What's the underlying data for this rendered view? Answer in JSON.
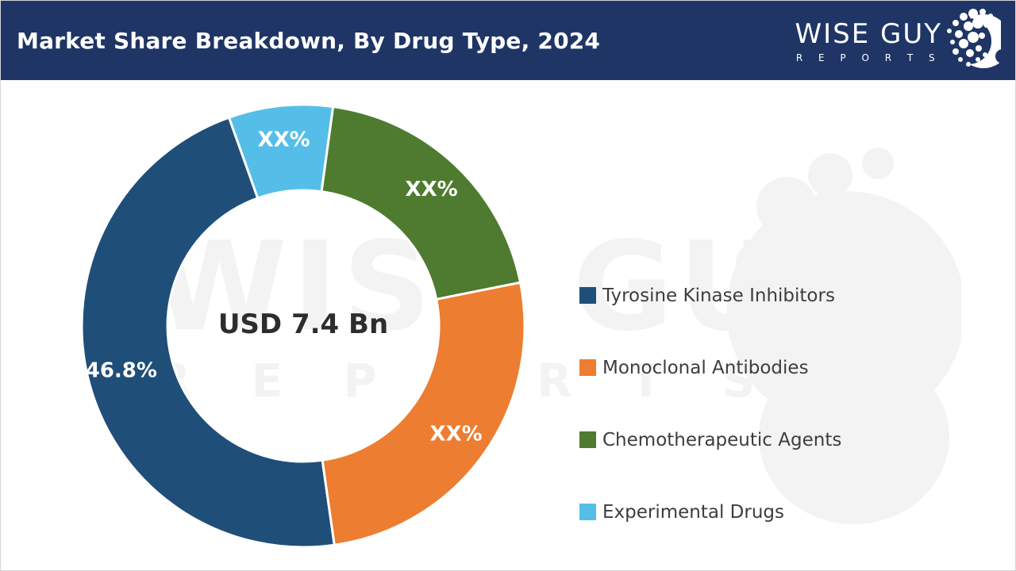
{
  "header": {
    "title": "Market Share Breakdown, By Drug Type, 2024",
    "logo": {
      "line1": "WISE GUY",
      "line2": "R E P O R T S"
    }
  },
  "watermark": {
    "line1": "WISE GUY",
    "line2": "REPORTS"
  },
  "chart_data": {
    "type": "pie",
    "subtype": "donut",
    "title": "Market Share Breakdown, By Drug Type, 2024",
    "center_label": "USD 7.4 Bn",
    "units": "percent market share",
    "start_angle_deg": 340.4,
    "slices": [
      {
        "name": "Experimental Drugs",
        "value": 7.6,
        "label": "XX%",
        "color": "#55bee8"
      },
      {
        "name": "Chemotherapeutic Agents",
        "value": 19.7,
        "label": "XX%",
        "color": "#4e7b2f"
      },
      {
        "name": "Monoclonal Antibodies",
        "value": 25.9,
        "label": "XX%",
        "color": "#ed7d31"
      },
      {
        "name": "Tyrosine Kinase Inhibitors",
        "value": 46.8,
        "label": "46.8%",
        "color": "#1f4e79"
      }
    ],
    "legend_position": "right"
  },
  "legend": {
    "items": [
      {
        "label": "Tyrosine Kinase Inhibitors",
        "color": "#1f4e79"
      },
      {
        "label": "Monoclonal Antibodies",
        "color": "#ed7d31"
      },
      {
        "label": "Chemotherapeutic Agents",
        "color": "#4e7b2f"
      },
      {
        "label": "Experimental Drugs",
        "color": "#55bee8"
      }
    ]
  },
  "colors": {
    "header_bg": "#1f3565",
    "watermark": "#f3f3f3",
    "center_text": "#2d2d2d",
    "legend_text": "#3d3d3d"
  }
}
